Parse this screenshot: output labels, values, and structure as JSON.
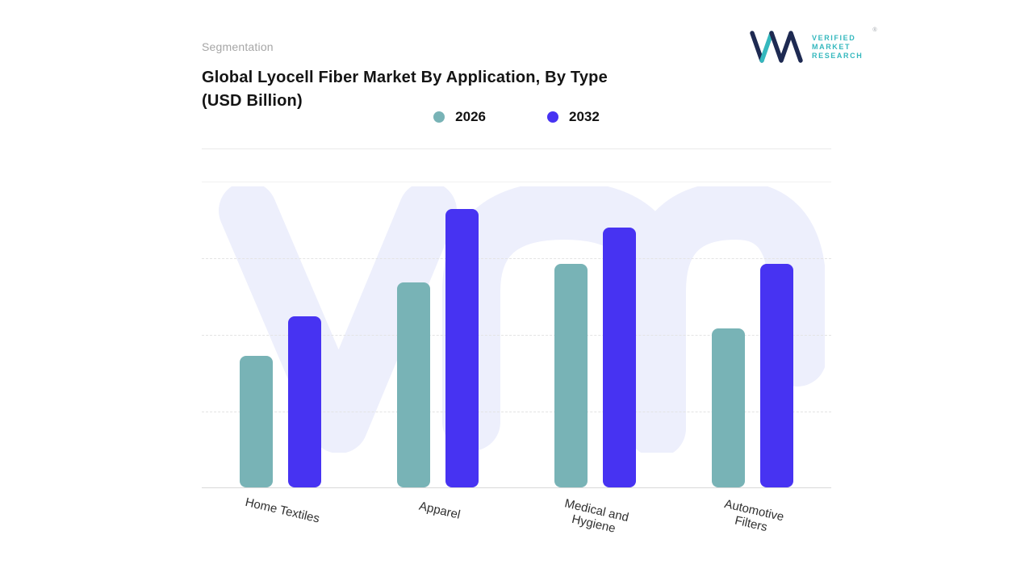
{
  "page": {
    "eyebrow": "Segmentation",
    "title_line1": "Global Lyocell Fiber Market By Application, By Type",
    "title_line2": "(USD Billion)"
  },
  "logo": {
    "monogram": "VM",
    "brand_lines": [
      "VERIFIED",
      "MARKET",
      "RESEARCH"
    ],
    "registered_mark": "®",
    "navy": "#1e2a52",
    "teal": "#35b8be"
  },
  "chart_data": {
    "type": "bar",
    "title": "Global Lyocell Fiber Market By Application, By Type (USD Billion)",
    "categories": [
      "Home Textiles",
      "Apparel",
      "Medical and Hygiene",
      "Automotive Filters"
    ],
    "categories_display": [
      [
        "Home Textiles"
      ],
      [
        "Apparel"
      ],
      [
        "Medical and",
        "Hygiene"
      ],
      [
        "Automotive",
        "Filters"
      ]
    ],
    "series": [
      {
        "name": "2026",
        "color": "#78b3b6",
        "values": [
          4.3,
          6.7,
          7.3,
          5.2
        ]
      },
      {
        "name": "2032",
        "color": "#4733f2",
        "values": [
          5.6,
          9.1,
          8.5,
          7.3
        ]
      }
    ],
    "ylim": [
      0,
      10
    ],
    "y_axis_labels_visible": false,
    "grid": "dashed-horizontal",
    "legend_position": "top",
    "x_label_rotation_deg": 13,
    "watermark": "vm-monogram",
    "watermark_color": "#edeffc"
  }
}
